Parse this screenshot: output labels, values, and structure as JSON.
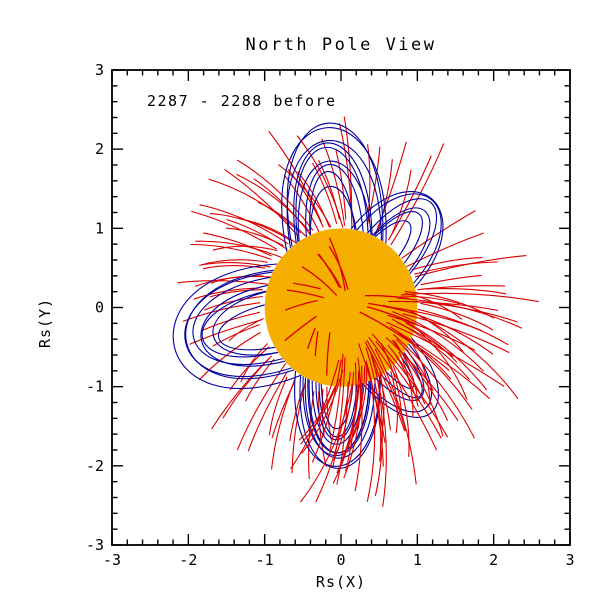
{
  "figure": {
    "background": "#FFFFFF"
  },
  "chart_data": {
    "type": "line",
    "title": "North Pole View",
    "annotation": "2287 - 2288 before",
    "xlabel": "Rs(X)",
    "ylabel": "Rs(Y)",
    "xlim": [
      -3,
      3
    ],
    "ylim": [
      -3,
      3
    ],
    "x_ticks": [
      -3,
      -2,
      -1,
      0,
      1,
      2,
      3
    ],
    "y_ticks": [
      -3,
      -2,
      -1,
      0,
      1,
      2,
      3
    ],
    "minor_tick_step": 0.2,
    "grid": false,
    "legend": "none",
    "sun": {
      "radius": 1.0,
      "color": "#F6AE00"
    },
    "colors": {
      "open_field": "#DB0000",
      "closed_field": "#00009B",
      "axis": "#000000",
      "text": "#000000"
    },
    "seed": 20,
    "open_field_clusters": [
      {
        "name": "upper-left-fan",
        "count": 34,
        "angle_min": 85,
        "angle_max": 172,
        "r0_min": 0.98,
        "r0_max": 1.12,
        "r1_min": 1.7,
        "r1_max": 2.45,
        "sweep": 12,
        "front": false
      },
      {
        "name": "lower-right-fan",
        "count": 72,
        "angle_min": -95,
        "angle_max": 15,
        "r0_min": 0.5,
        "r0_max": 1.05,
        "r1_min": 1.55,
        "r1_max": 2.6,
        "sweep": -14,
        "front": true
      },
      {
        "name": "left-fan",
        "count": 9,
        "angle_min": 174,
        "angle_max": 214,
        "r0_min": 1.0,
        "r0_max": 1.12,
        "r1_min": 1.5,
        "r1_max": 2.1,
        "sweep": 8,
        "front": false
      },
      {
        "name": "bottom-left-fan",
        "count": 13,
        "angle_min": 214,
        "angle_max": 262,
        "r0_min": 1.0,
        "r0_max": 1.15,
        "r1_min": 1.6,
        "r1_max": 2.35,
        "sweep": 7,
        "front": false
      },
      {
        "name": "top-fan",
        "count": 10,
        "angle_min": 45,
        "angle_max": 90,
        "r0_min": 1.0,
        "r0_max": 1.2,
        "r1_min": 1.8,
        "r1_max": 2.5,
        "sweep": 6,
        "front": false
      },
      {
        "name": "right-fan",
        "count": 8,
        "angle_min": 8,
        "angle_max": 40,
        "r0_min": 1.0,
        "r0_max": 1.1,
        "r1_min": 1.8,
        "r1_max": 2.55,
        "sweep": -6,
        "front": false
      }
    ],
    "closed_loop_clusters": [
      {
        "name": "top-arcade",
        "count": 9,
        "foot1": 55,
        "foot2": 135,
        "apex_min": 1.35,
        "apex_max": 2.3,
        "front": false
      },
      {
        "name": "upper-right-loops",
        "count": 6,
        "foot1": 18,
        "foot2": 80,
        "apex_min": 1.2,
        "apex_max": 1.75,
        "front": false
      },
      {
        "name": "left-arcade",
        "count": 8,
        "foot1": 150,
        "foot2": 235,
        "apex_min": 1.4,
        "apex_max": 2.15,
        "front": false
      },
      {
        "name": "bottom-arcade",
        "count": 10,
        "foot1": 235,
        "foot2": 302,
        "apex_min": 1.3,
        "apex_max": 1.95,
        "front": true
      },
      {
        "name": "bottom-right-loops",
        "count": 5,
        "foot1": 288,
        "foot2": 336,
        "apex_min": 1.15,
        "apex_max": 1.55,
        "front": true
      }
    ],
    "disk_line_clusters": [
      {
        "name": "disk-top",
        "count": 5,
        "angle_min": 60,
        "angle_max": 115,
        "r_in": 0.2,
        "r_out": 0.85,
        "bend": 24
      },
      {
        "name": "disk-right",
        "count": 4,
        "angle_min": -20,
        "angle_max": 30,
        "r_in": 0.3,
        "r_out": 0.9,
        "bend": -16
      },
      {
        "name": "disk-lower-left",
        "count": 4,
        "angle_min": 195,
        "angle_max": 250,
        "r_in": 0.35,
        "r_out": 0.8,
        "bend": 12
      },
      {
        "name": "disk-upper-left",
        "count": 3,
        "angle_min": 130,
        "angle_max": 175,
        "r_in": 0.3,
        "r_out": 0.75,
        "bend": 14
      }
    ]
  }
}
